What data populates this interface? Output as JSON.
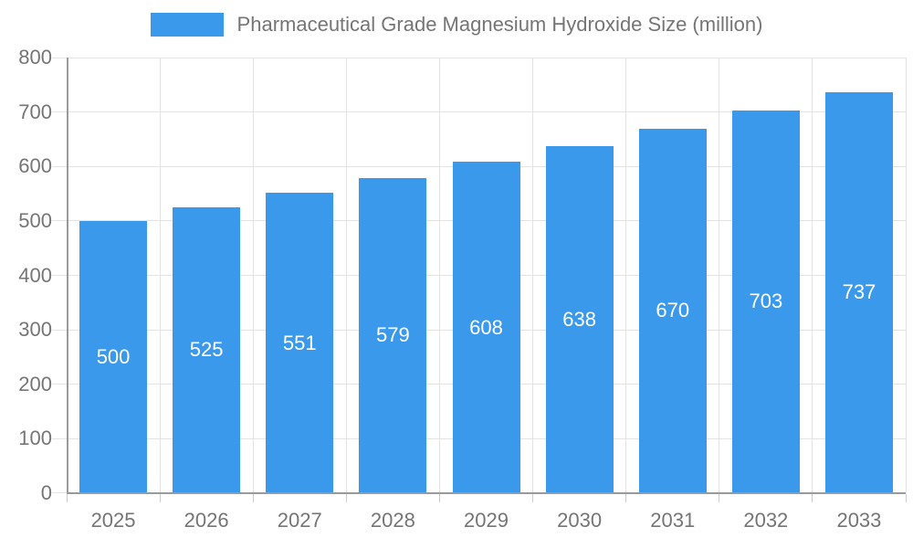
{
  "chart_data": {
    "type": "bar",
    "title": "Pharmaceutical Grade Magnesium Hydroxide Size (million)",
    "legend": {
      "position": "top",
      "entries": [
        "Pharmaceutical Grade Magnesium Hydroxide Size (million)"
      ]
    },
    "categories": [
      "2025",
      "2026",
      "2027",
      "2028",
      "2029",
      "2030",
      "2031",
      "2032",
      "2033"
    ],
    "values": [
      500,
      525,
      551,
      579,
      608,
      638,
      670,
      703,
      737
    ],
    "value_labels_shown": true,
    "xlabel": "",
    "ylabel": "",
    "ylim": [
      0,
      800
    ],
    "yticks": [
      0,
      100,
      200,
      300,
      400,
      500,
      600,
      700,
      800
    ],
    "grid": true,
    "colors": {
      "bar": "#3b99ec",
      "value_label": "#ffffff",
      "axis_text": "#757575",
      "grid_line": "#e3e3e3",
      "axis_line": "#9a9a9a",
      "tick": "#cccccc",
      "background": "#ffffff"
    }
  }
}
